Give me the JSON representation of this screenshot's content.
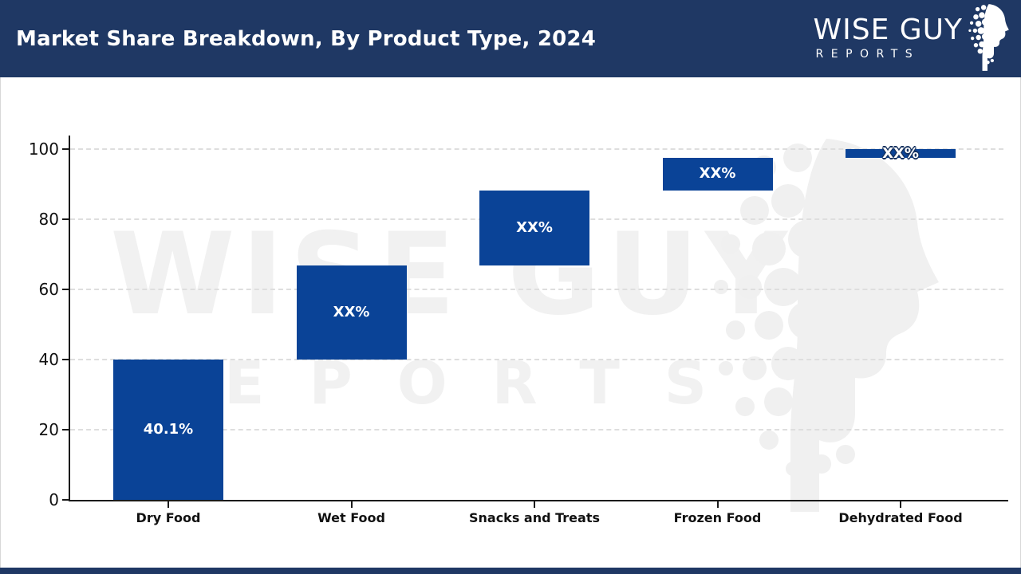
{
  "header": {
    "title": "Market Share Breakdown, By Product Type, 2024",
    "logo": {
      "line1": "WISE GUY",
      "line2": "REPORTS"
    }
  },
  "watermark": {
    "line1": "WISE GUY",
    "line2": "REPORTS"
  },
  "colors": {
    "header_bg": "#1f3864",
    "footer_bg": "#1f3864",
    "bar": "#0a4397",
    "bar_label": "#ffffff",
    "gridline": "#dedede",
    "axis": "#1a1a1a",
    "watermark": "#f1f1f1"
  },
  "chart_data": {
    "type": "bar",
    "subtype": "waterfall-cumulative-percent",
    "title": "Market Share Breakdown, By Product Type, 2024",
    "categories": [
      "Dry Food",
      "Wet Food",
      "Snacks and Treats",
      "Frozen Food",
      "Dehydrated Food"
    ],
    "segments": [
      {
        "category": "Dry Food",
        "start": 0,
        "end": 40.1,
        "label": "40.1%",
        "halo": false
      },
      {
        "category": "Wet Food",
        "start": 40.1,
        "end": 66.8,
        "label": "XX%",
        "halo": false
      },
      {
        "category": "Snacks and Treats",
        "start": 66.8,
        "end": 88.2,
        "label": "XX%",
        "halo": false
      },
      {
        "category": "Frozen Food",
        "start": 88.2,
        "end": 97.5,
        "label": "XX%",
        "halo": false
      },
      {
        "category": "Dehydrated Food",
        "start": 97.5,
        "end": 100,
        "label": "XX%",
        "halo": true
      }
    ],
    "yticks": [
      0,
      20,
      40,
      60,
      80,
      100
    ],
    "ylim": [
      0,
      104
    ],
    "xlabel": "",
    "ylabel": "",
    "grid": "dashed-horizontal",
    "legend": "none"
  }
}
